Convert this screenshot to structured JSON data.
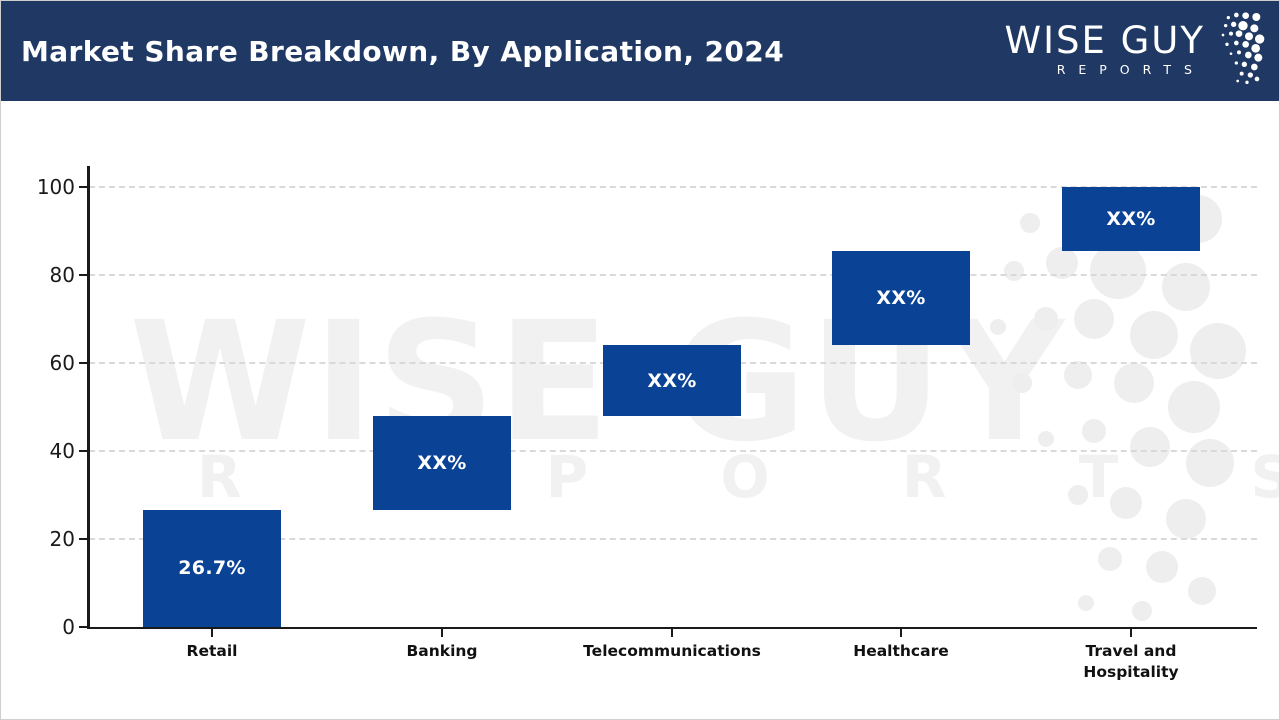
{
  "header": {
    "title": "Market Share Breakdown, By Application, 2024",
    "bg_color": "#203864",
    "logo": {
      "line1": "WISE GUY",
      "line2": "REPORTS"
    }
  },
  "watermark": {
    "line1": "WISE GUY",
    "line2": "R E P O R T S"
  },
  "chart_data": {
    "type": "bar",
    "subtype": "waterfall",
    "title": "Market Share Breakdown, By Application, 2024",
    "xlabel": "",
    "ylabel": "",
    "categories": [
      "Retail",
      "Banking",
      "Telecommunications",
      "Healthcare",
      "Travel and Hospitality"
    ],
    "segments": [
      {
        "category": "Retail",
        "start": 0,
        "end": 26.7,
        "label": "26.7%"
      },
      {
        "category": "Banking",
        "start": 26.7,
        "end": 48,
        "label": "XX%"
      },
      {
        "category": "Telecommunications",
        "start": 48,
        "end": 64,
        "label": "XX%"
      },
      {
        "category": "Healthcare",
        "start": 64,
        "end": 85.5,
        "label": "XX%"
      },
      {
        "category": "Travel and Hospitality",
        "start": 85.5,
        "end": 100,
        "label": "XX%"
      }
    ],
    "yticks": [
      0,
      20,
      40,
      60,
      80,
      100
    ],
    "ylim": [
      0,
      105
    ],
    "bar_color": "#0a4296",
    "value_label_color": "#ffffff",
    "grid": "horizontal-dashed",
    "legend_position": "none"
  }
}
